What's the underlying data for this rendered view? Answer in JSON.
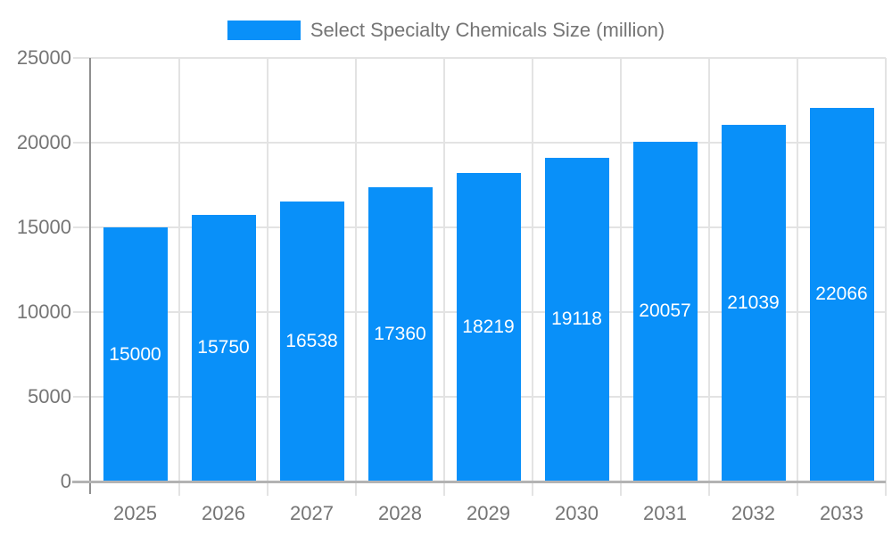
{
  "chart_data": {
    "type": "bar",
    "title": "Select Specialty Chemicals Size (million)",
    "legend_position": "top",
    "categories": [
      "2025",
      "2026",
      "2027",
      "2028",
      "2029",
      "2030",
      "2031",
      "2032",
      "2033"
    ],
    "series": [
      {
        "name": "Select Specialty Chemicals Size (million)",
        "values": [
          15000,
          15750,
          16538,
          17360,
          18219,
          19118,
          20057,
          21039,
          22066
        ]
      }
    ],
    "xlabel": "",
    "ylabel": "",
    "ylim": [
      0,
      25000
    ],
    "yticks": [
      0,
      5000,
      10000,
      15000,
      20000,
      25000
    ],
    "grid": true,
    "value_labels_position": "inside-middle",
    "colors": {
      "bar": "#0990F9",
      "value_label": "#FFFFFF",
      "axis_text": "#757575",
      "legend_text": "#757575",
      "gridline": "#E3E3E3",
      "y_axis_line": "#8F8F8F",
      "x_axis_line": "#B3B3B3",
      "background": "#FFFFFF"
    }
  }
}
